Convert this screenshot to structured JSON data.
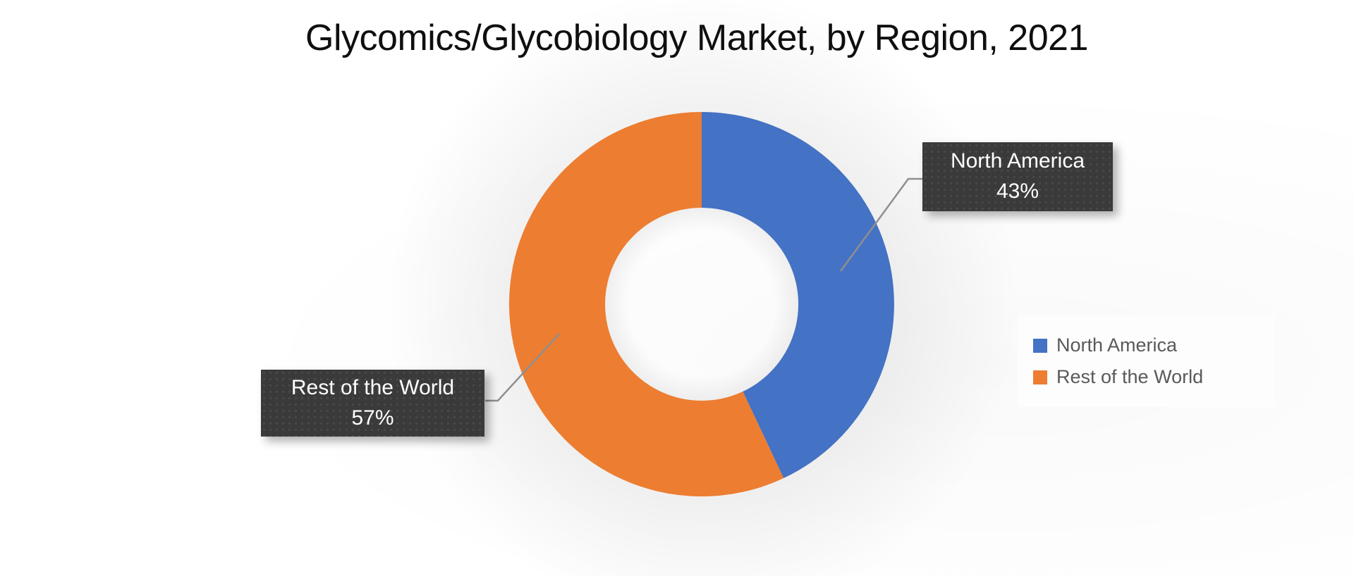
{
  "title": "Glycomics/Glycobiology Market, by Region, 2021",
  "chart_data": {
    "type": "pie",
    "subtype": "donut",
    "title": "Glycomics/Glycobiology Market, by Region, 2021",
    "categories": [
      "North America",
      "Rest of the World"
    ],
    "values": [
      43,
      57
    ],
    "unit": "%",
    "colors": [
      "#4472c4",
      "#ed7d31"
    ],
    "start_angle_deg": 0,
    "direction": "clockwise",
    "inner_radius_ratio": 0.5,
    "legend_position": "right",
    "data_labels": [
      {
        "label": "North America",
        "value": "43%"
      },
      {
        "label": "Rest of the World",
        "value": "57%"
      }
    ]
  },
  "callouts": {
    "north_america": {
      "label": "North America",
      "value": "43%"
    },
    "rest_of_world": {
      "label": "Rest of the World",
      "value": "57%"
    }
  },
  "legend": {
    "items": [
      {
        "label": "North America",
        "color": "#4472c4"
      },
      {
        "label": "Rest of the World",
        "color": "#ed7d31"
      }
    ]
  },
  "style": {
    "label_box_bg": "#3a3a3a",
    "label_text_color": "#ffffff",
    "legend_text_color": "#595959",
    "callout_line_color": "#8f8f8f",
    "title_color": "#0f0f0f",
    "background": "#ffffff"
  }
}
